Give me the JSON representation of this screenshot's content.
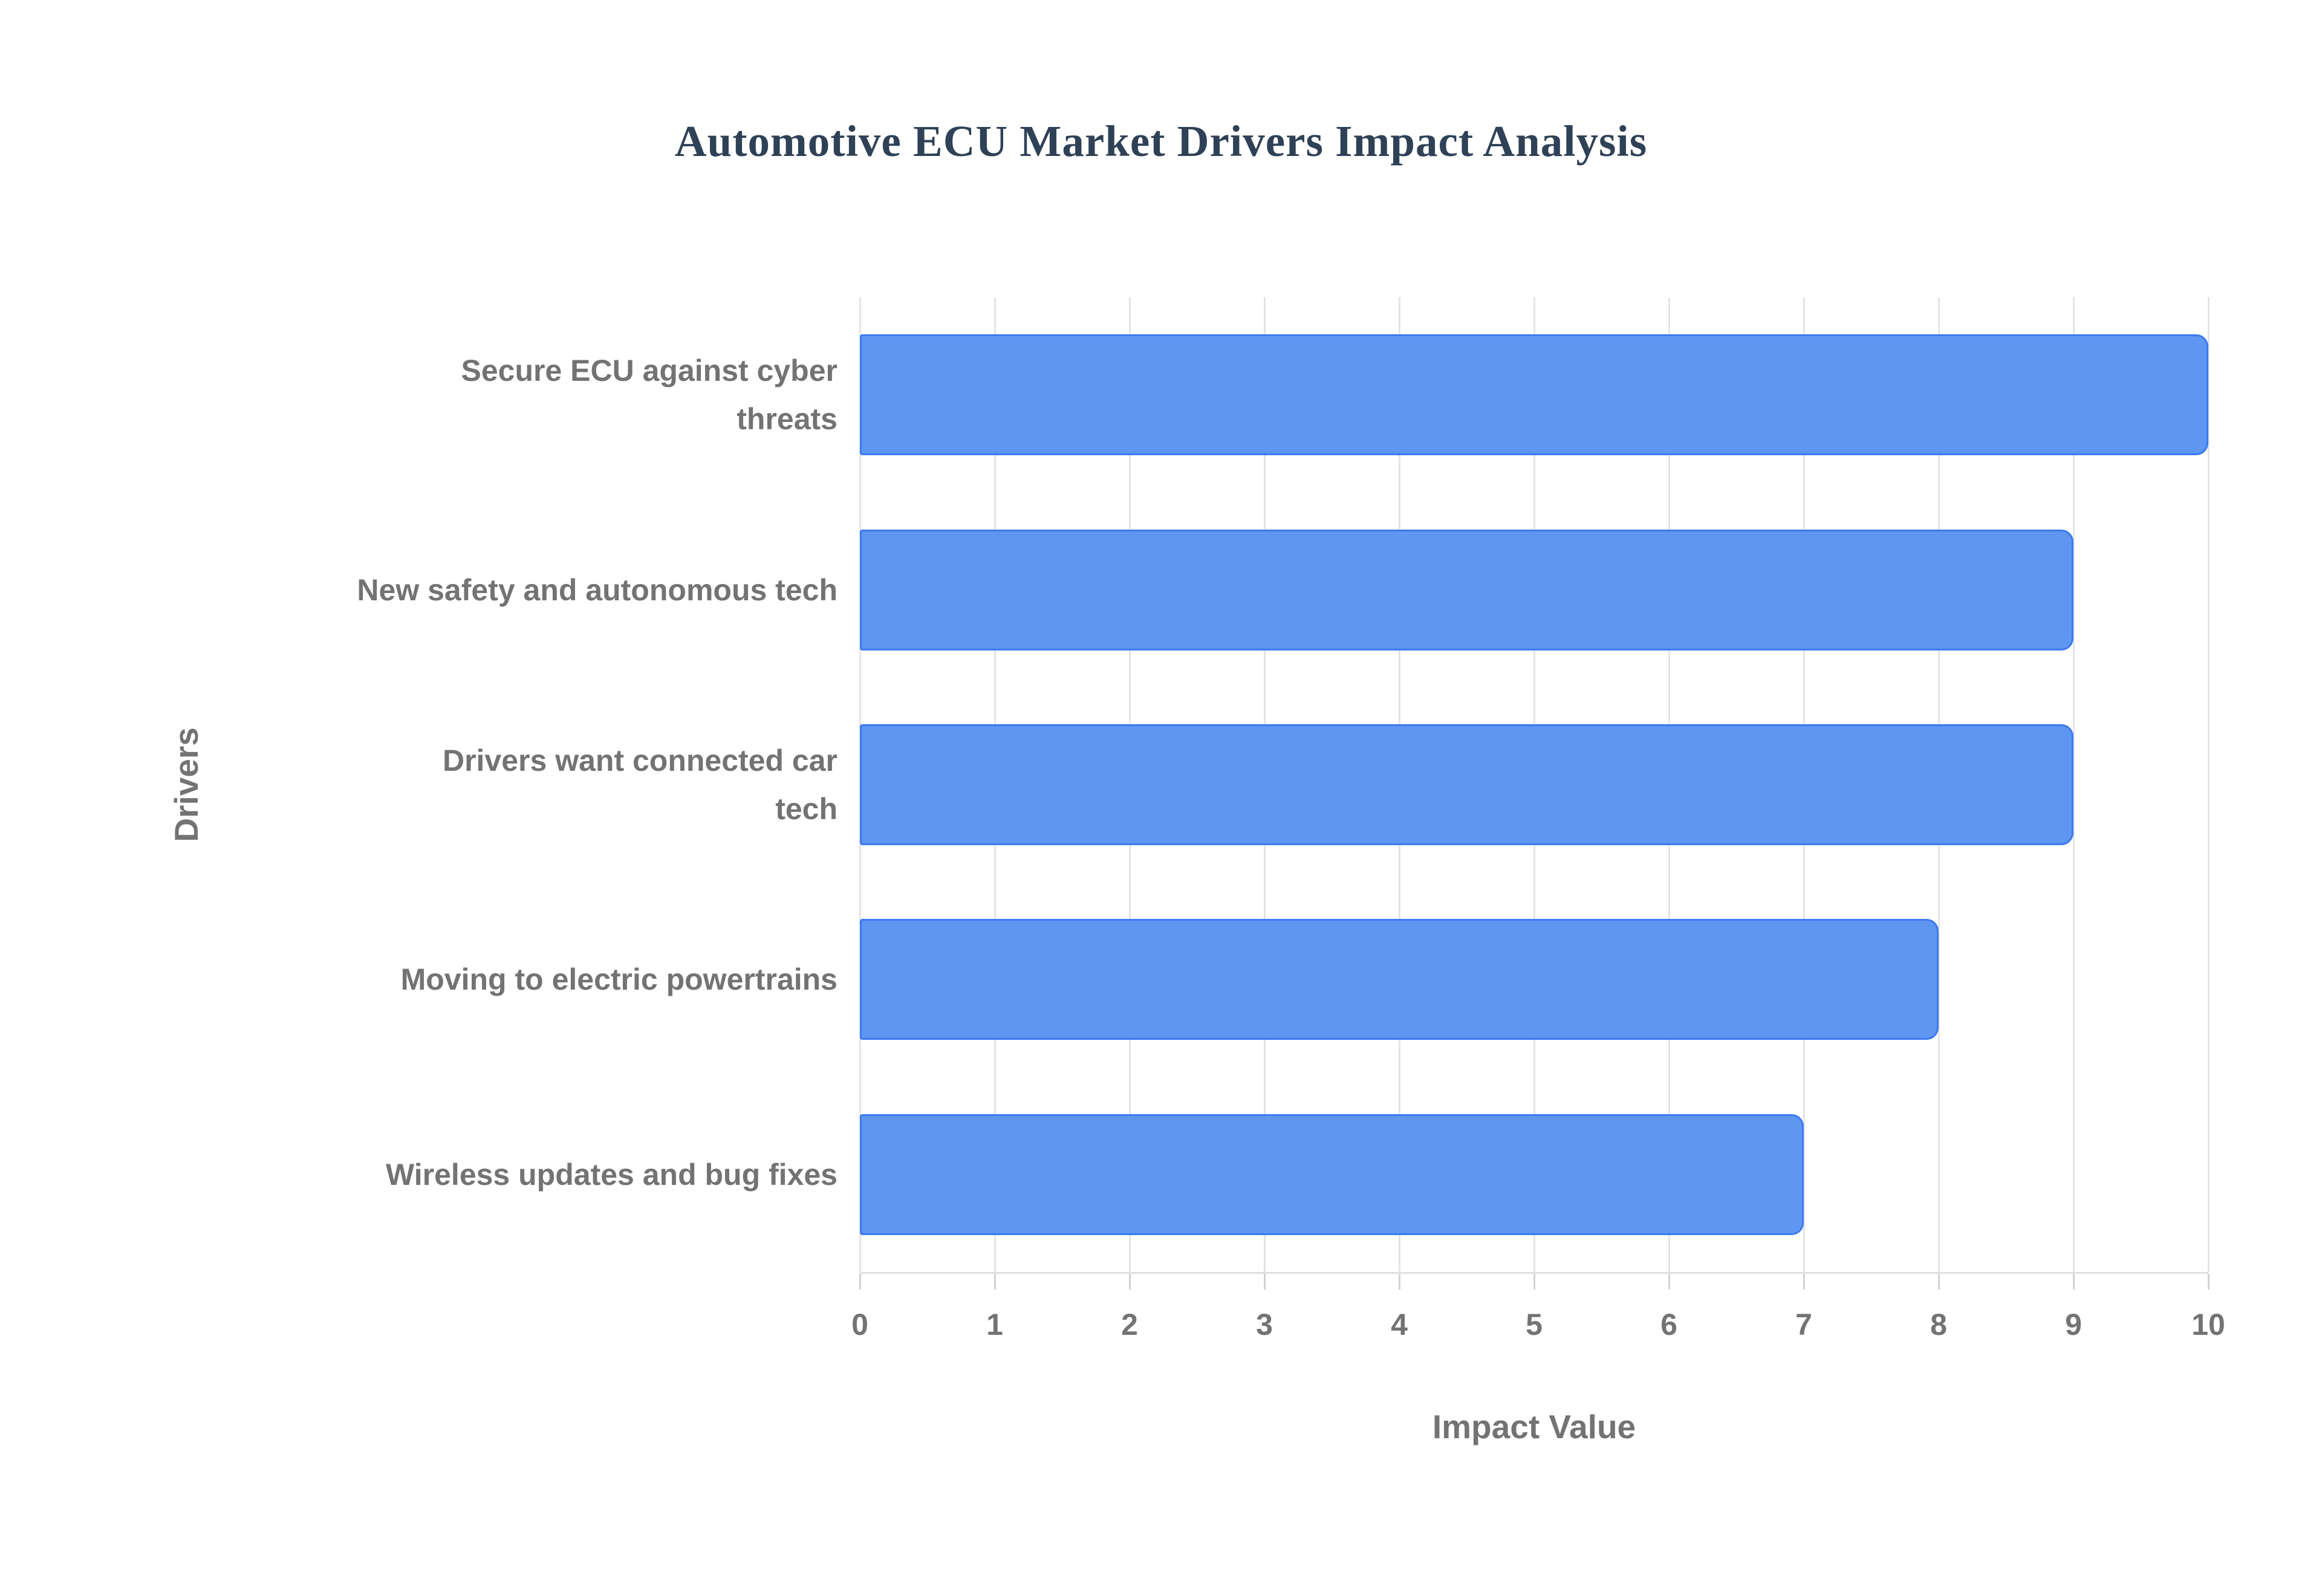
{
  "page": {
    "background": "#ffffff"
  },
  "chart_data": {
    "type": "bar",
    "orientation": "horizontal",
    "title": "Automotive ECU Market Drivers Impact Analysis",
    "categories": [
      "Secure ECU against cyber threats",
      "New safety and autonomous tech",
      "Drivers want connected car tech",
      "Moving to electric powertrains",
      "Wireless updates and bug fixes"
    ],
    "category_display": [
      "Secure ECU against cyber\nthreats",
      "New safety and autonomous tech",
      "Drivers want connected car\ntech",
      "Moving to electric powertrains",
      "Wireless updates and bug fixes"
    ],
    "values": [
      10,
      9,
      9,
      8,
      7
    ],
    "xlabel": "Impact Value",
    "ylabel": "Drivers",
    "xlim": [
      0,
      10
    ],
    "xticks": [
      "0",
      "1",
      "2",
      "3",
      "4",
      "5",
      "6",
      "7",
      "8",
      "9",
      "10"
    ],
    "grid": "vertical",
    "legend": "none",
    "colors": {
      "bar_fill": "#5e96f2",
      "bar_border": "#3b7af0",
      "title_text": "#2e4156",
      "axis_text": "#737373",
      "gridline": "#e4e4e4",
      "axis_line": "#e0e0e0",
      "tick_mark": "#d2d2d2",
      "background": "#ffffff"
    }
  }
}
